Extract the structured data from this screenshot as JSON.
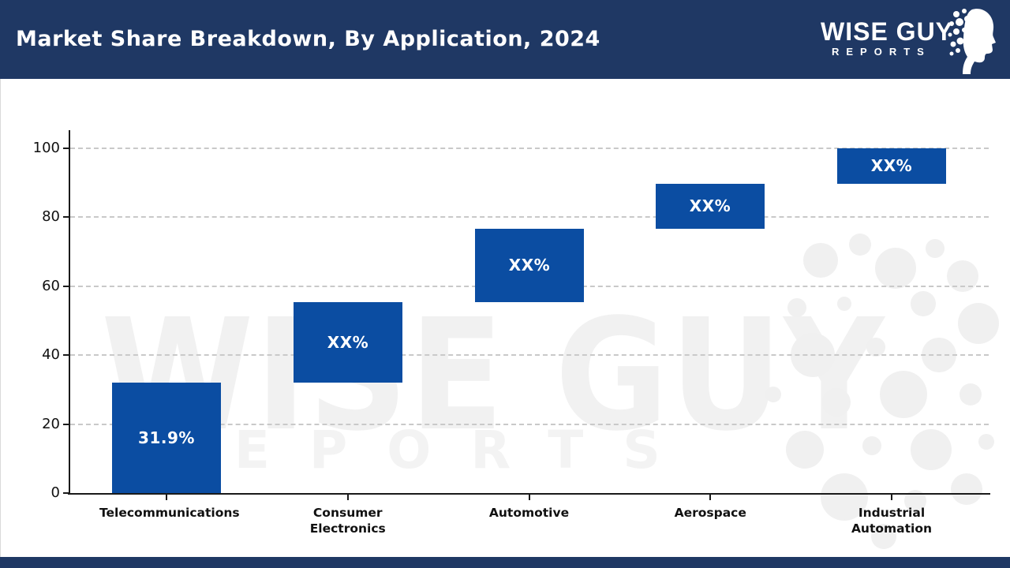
{
  "header": {
    "title": "Market Share Breakdown, By Application, 2024",
    "background_color": "#1f3864",
    "logo": {
      "line1": "WISE GUY",
      "line2": "REPORTS"
    }
  },
  "watermark": {
    "line1": "WISE GUY",
    "line2": "REPORTS"
  },
  "footer": {
    "background_color": "#1f3864"
  },
  "chart_data": {
    "type": "bar",
    "subtype": "waterfall",
    "title": "Market Share Breakdown, By Application, 2024",
    "categories": [
      "Telecommunications",
      "Consumer Electronics",
      "Automotive",
      "Aerospace",
      "Industrial Automation"
    ],
    "segments": [
      {
        "category": "Telecommunications",
        "label": "31.9%",
        "start": 0,
        "end": 31.9
      },
      {
        "category": "Consumer Electronics",
        "label": "XX%",
        "start": 31.9,
        "end": 55.4
      },
      {
        "category": "Automotive",
        "label": "XX%",
        "start": 55.4,
        "end": 76.6
      },
      {
        "category": "Aerospace",
        "label": "XX%",
        "start": 76.6,
        "end": 89.6
      },
      {
        "category": "Industrial Automation",
        "label": "XX%",
        "start": 89.6,
        "end": 100
      }
    ],
    "xlabel": "",
    "ylabel": "",
    "ylim": [
      0,
      100
    ],
    "yticks": [
      0,
      20,
      40,
      60,
      80,
      100
    ],
    "grid": "horizontal-dashed",
    "legend": "none",
    "bar_color": "#0b4da2",
    "bar_label_color": "#ffffff",
    "axis_color": "#1a1a1a",
    "gridline_color": "#c9c9c9"
  }
}
